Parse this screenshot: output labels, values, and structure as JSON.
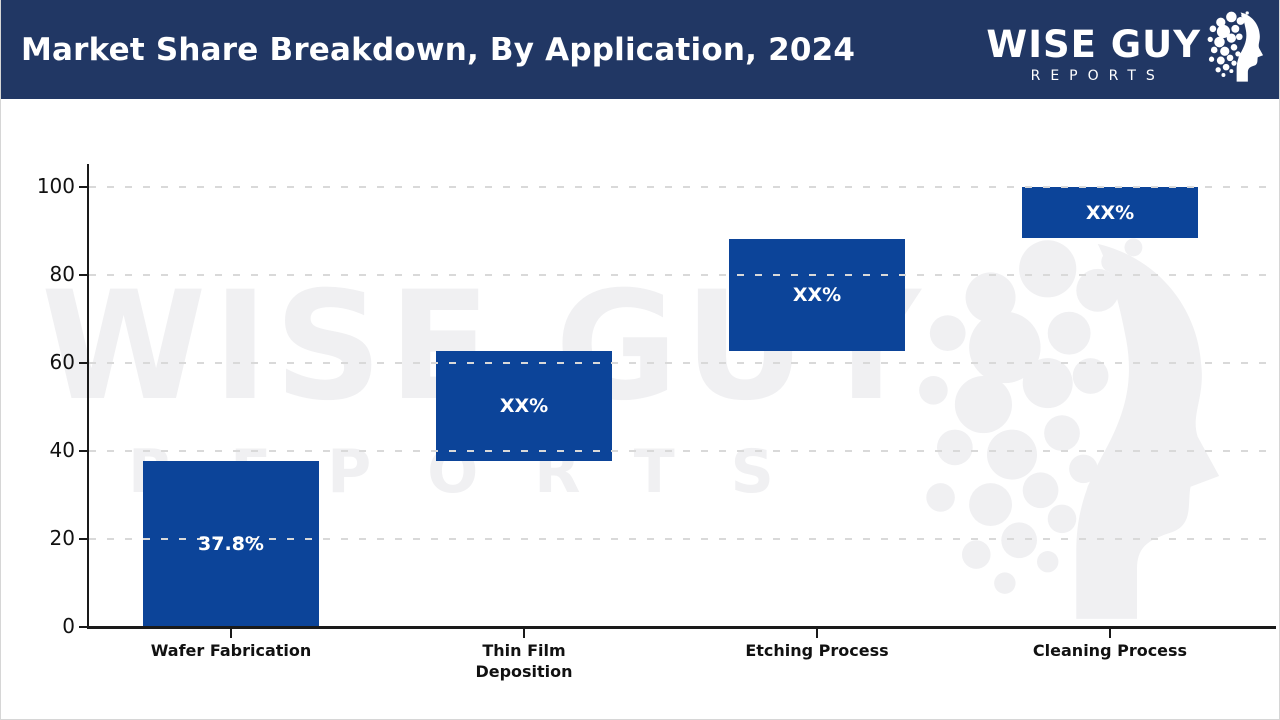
{
  "header": {
    "title": "Market Share Breakdown, By Application, 2024",
    "logo": {
      "brand": "WISE GUY",
      "sub": "REPORTS",
      "icon": "dotted-head-profile-icon"
    }
  },
  "watermark": {
    "brand": "WISE GUY",
    "sub": "REPORTS",
    "icon": "dotted-head-profile-icon"
  },
  "colors": {
    "header_bg": "#213764",
    "bar": "#0c4499",
    "bar_label": "#ffffff",
    "grid": "#d9d9d9",
    "axis": "#1a1a1a",
    "tick_label": "#111111",
    "watermark": "#f0f0f2",
    "page_border": "#d6d6d6"
  },
  "chart_data": {
    "type": "bar",
    "subtype": "floating-waterfall",
    "title": "Market Share Breakdown, By Application, 2024",
    "categories": [
      "Wafer Fabrication",
      "Thin Film\nDeposition",
      "Etching Process",
      "Cleaning Process"
    ],
    "series": [
      {
        "name": "Market Share (%)",
        "segments": [
          {
            "category": "Wafer Fabrication",
            "start": 0,
            "end": 37.8,
            "label": "37.8%"
          },
          {
            "category": "Thin Film Deposition",
            "start": 37.8,
            "end": 62.7,
            "label": "XX%"
          },
          {
            "category": "Etching Process",
            "start": 62.7,
            "end": 88.2,
            "label": "XX%"
          },
          {
            "category": "Cleaning Process",
            "start": 88.4,
            "end": 100,
            "label": "XX%"
          }
        ]
      }
    ],
    "xlabel": "",
    "ylabel": "",
    "ylim": [
      0,
      100
    ],
    "yticks": [
      0,
      20,
      40,
      60,
      80,
      100
    ],
    "grid": {
      "horizontal": true,
      "style": "dashed",
      "over_bars": true
    },
    "legend": "none"
  }
}
